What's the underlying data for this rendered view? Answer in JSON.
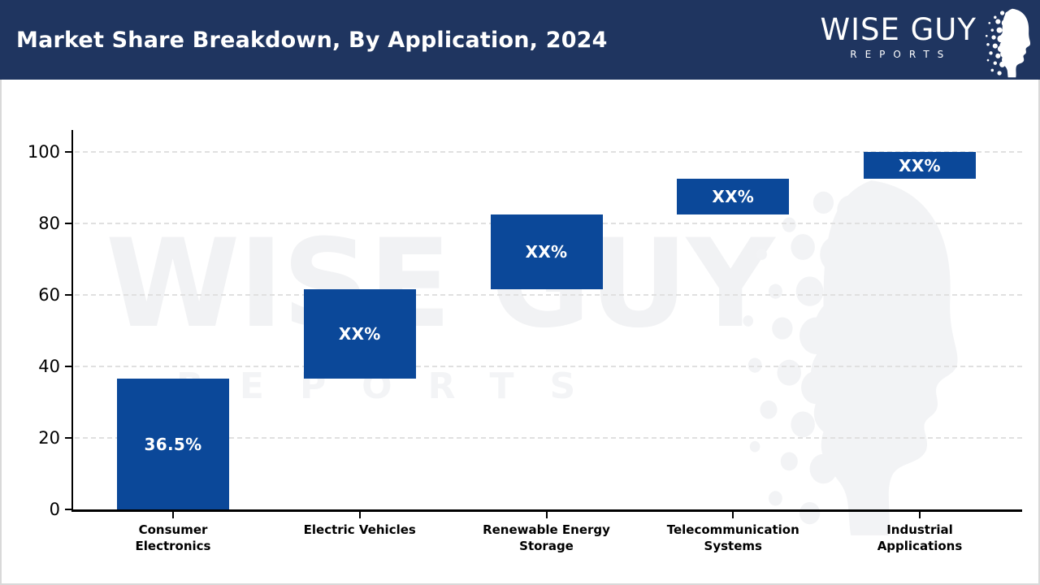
{
  "header": {
    "title": "Market Share Breakdown, By Application, 2024",
    "logo": {
      "line1": "WISE GUY",
      "line2": "REPORTS"
    }
  },
  "watermark": {
    "line1": "WISE GUY",
    "line2": "REPORTS"
  },
  "chart_data": {
    "type": "bar",
    "variant": "waterfall",
    "title": "Market Share Breakdown, By Application, 2024",
    "categories": [
      "Consumer Electronics",
      "Electric Vehicles",
      "Renewable Energy Storage",
      "Telecommunication Systems",
      "Industrial Applications"
    ],
    "segments": [
      {
        "category": "Consumer Electronics",
        "start": 0,
        "end": 36.5,
        "label": "36.5%"
      },
      {
        "category": "Electric Vehicles",
        "start": 36.5,
        "end": 61.5,
        "label": "XX%"
      },
      {
        "category": "Renewable Energy Storage",
        "start": 61.5,
        "end": 82.5,
        "label": "XX%"
      },
      {
        "category": "Telecommunication Systems",
        "start": 82.5,
        "end": 92.5,
        "label": "XX%"
      },
      {
        "category": "Industrial Applications",
        "start": 92.5,
        "end": 100,
        "label": "XX%"
      }
    ],
    "yticks": [
      0,
      20,
      40,
      60,
      80,
      100
    ],
    "ylim": [
      0,
      106
    ],
    "xlabel": "",
    "ylabel": "",
    "grid": "horizontal-dashed",
    "legend": "none",
    "bar_color": "#0b4899",
    "value_label_color": "#ffffff"
  },
  "colors": {
    "header_bg": "#1f3560",
    "bar": "#0b4899",
    "grid": "#e0e0e0",
    "axis": "#000000",
    "frame_border": "#d9d9d9",
    "watermark": "#f1f2f4"
  }
}
